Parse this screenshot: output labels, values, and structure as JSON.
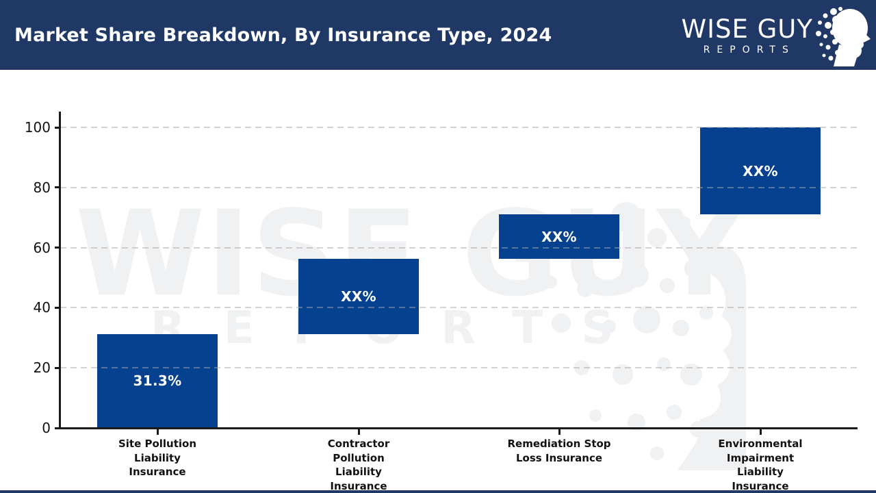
{
  "header": {
    "title": "Market Share Breakdown, By Insurance Type, 2024",
    "logo": {
      "wordmark": "WISE GUY",
      "sub": "REPORTS"
    }
  },
  "watermark": {
    "wordmark": "WISE GUY",
    "sub": "REPORTS"
  },
  "chart_data": {
    "type": "bar",
    "variant": "waterfall",
    "title": "Market Share Breakdown, By Insurance Type, 2024",
    "categories": [
      "Site Pollution Liability Insurance",
      "Contractor Pollution Liability Insurance",
      "Remediation Stop Loss Insurance",
      "Environmental Impairment Liability Insurance"
    ],
    "category_lines": [
      [
        "Site Pollution",
        "Liability",
        "Insurance"
      ],
      [
        "Contractor",
        "Pollution",
        "Liability",
        "Insurance"
      ],
      [
        "Remediation Stop",
        "Loss Insurance"
      ],
      [
        "Environmental",
        "Impairment",
        "Liability",
        "Insurance"
      ]
    ],
    "segments": [
      {
        "category": "Site Pollution Liability Insurance",
        "start": 0,
        "end": 31.3,
        "label": "31.3%"
      },
      {
        "category": "Contractor Pollution Liability Insurance",
        "start": 31.3,
        "end": 56.2,
        "label": "XX%"
      },
      {
        "category": "Remediation Stop Loss Insurance",
        "start": 56.2,
        "end": 71.0,
        "label": "XX%"
      },
      {
        "category": "Environmental Impairment Liability Insurance",
        "start": 71.0,
        "end": 100,
        "label": "XX%"
      }
    ],
    "xlabel": "",
    "ylabel": "",
    "yticks": [
      0,
      20,
      40,
      60,
      80,
      100
    ],
    "ylim": [
      0,
      105
    ],
    "grid": {
      "horizontal": true,
      "style": "dashed"
    },
    "legend": null,
    "colors": {
      "bar": "#06418f",
      "header": "#1f3866",
      "grid": "#d9d9d9",
      "axis": "#1a1a1a",
      "value_label": "#ffffff",
      "watermark": "#f0f1f3"
    }
  }
}
